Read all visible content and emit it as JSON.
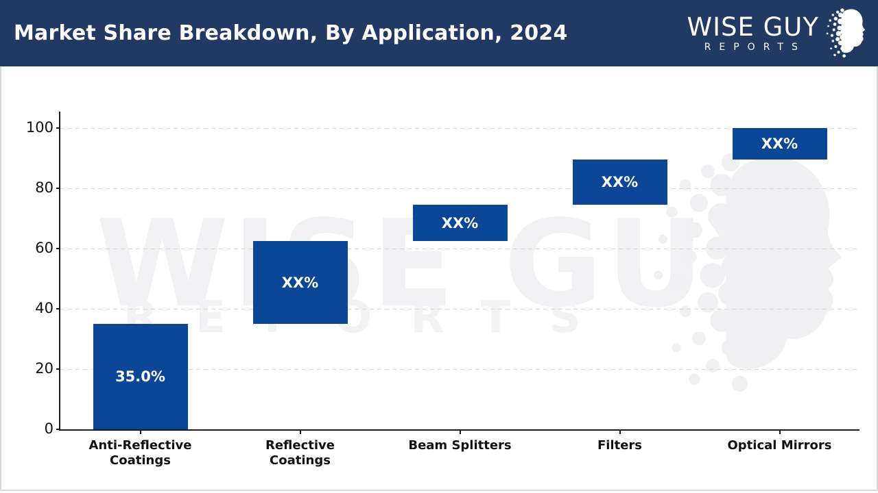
{
  "header": {
    "title": "Market Share Breakdown, By Application, 2024",
    "bg_color": "#223a63",
    "logo": {
      "primary": "WISE GUY",
      "secondary": "REPORTS"
    }
  },
  "watermark": {
    "primary": "WISE GUY",
    "secondary": "REPORTS"
  },
  "chart_data": {
    "type": "bar",
    "subtype": "waterfall",
    "title": "Market Share Breakdown, By Application, 2024",
    "categories": [
      "Anti-Reflective Coatings",
      "Reflective Coatings",
      "Beam Splitters",
      "Filters",
      "Optical Mirrors"
    ],
    "segments": [
      {
        "category": "Anti-Reflective Coatings",
        "start": 0,
        "end": 35,
        "label": "35.0%"
      },
      {
        "category": "Reflective Coatings",
        "start": 35,
        "end": 62.5,
        "label": "XX%"
      },
      {
        "category": "Beam Splitters",
        "start": 62.5,
        "end": 74.5,
        "label": "XX%"
      },
      {
        "category": "Filters",
        "start": 74.5,
        "end": 89.5,
        "label": "XX%"
      },
      {
        "category": "Optical Mirrors",
        "start": 89.5,
        "end": 100,
        "label": "XX%"
      }
    ],
    "y_ticks": [
      0,
      20,
      40,
      60,
      80,
      100
    ],
    "ylim": [
      0,
      105.5
    ],
    "xlabel": "",
    "ylabel": "",
    "grid": "horizontal-dashed",
    "legend": "none",
    "bar_color": "#0b4697",
    "bar_label_color": "#ffffff",
    "axis_color": "#1a1a1a"
  }
}
